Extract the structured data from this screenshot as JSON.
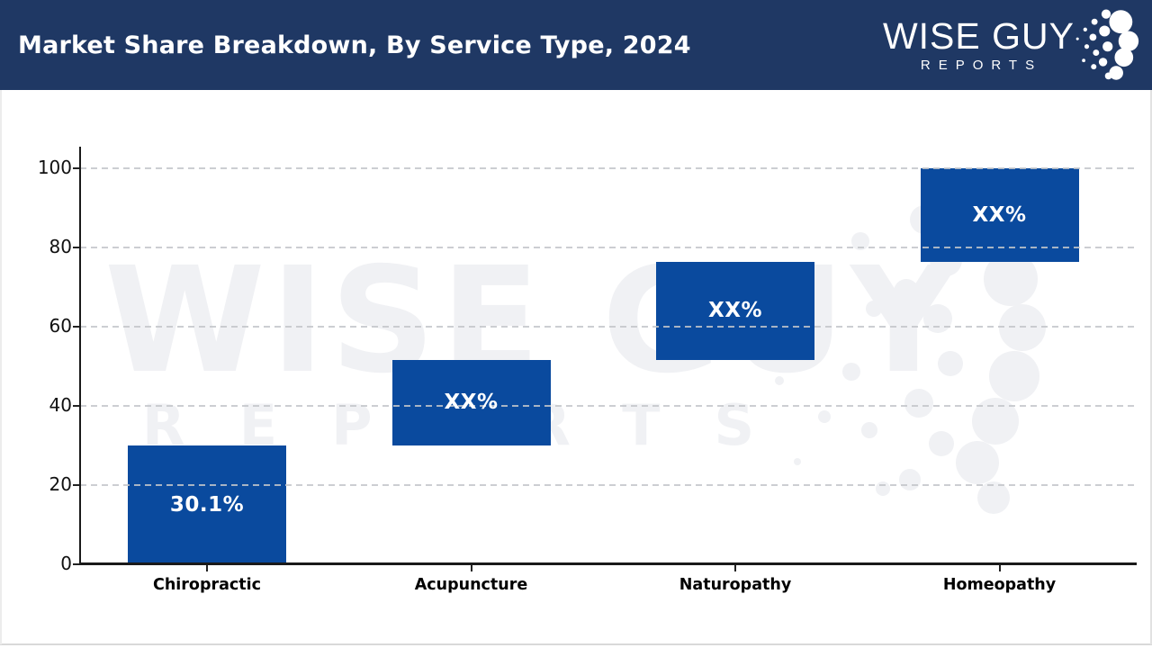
{
  "header": {
    "title": "Market Share Breakdown, By Service Type, 2024",
    "logo_line1": "WISE GUY",
    "logo_line2": "REPORTS"
  },
  "watermark": {
    "line1": "WISE GUY",
    "line2": "REPORTS"
  },
  "chart_data": {
    "type": "bar",
    "subtype": "floating-waterfall",
    "title": "Market Share Breakdown, By Service Type, 2024",
    "categories": [
      "Chiropractic",
      "Acupuncture",
      "Naturopathy",
      "Homeopathy"
    ],
    "segments": [
      [
        0,
        30.1
      ],
      [
        30.1,
        51.6
      ],
      [
        51.6,
        76.4
      ],
      [
        76.4,
        100
      ]
    ],
    "bar_labels": [
      "30.1%",
      "XX%",
      "XX%",
      "XX%"
    ],
    "yticks": [
      0,
      20,
      40,
      60,
      80,
      100
    ],
    "ylim": [
      0,
      100
    ],
    "grid": "horizontal-dashed",
    "legend": "none",
    "xlabel": "",
    "ylabel": ""
  },
  "colors": {
    "header_bg": "#1f3864",
    "bar": "#0a4a9e",
    "bar_label_text": "#ffffff",
    "grid": "#c8cbcf",
    "watermark": "#f0f1f4",
    "axis": "#1a1a1a"
  }
}
